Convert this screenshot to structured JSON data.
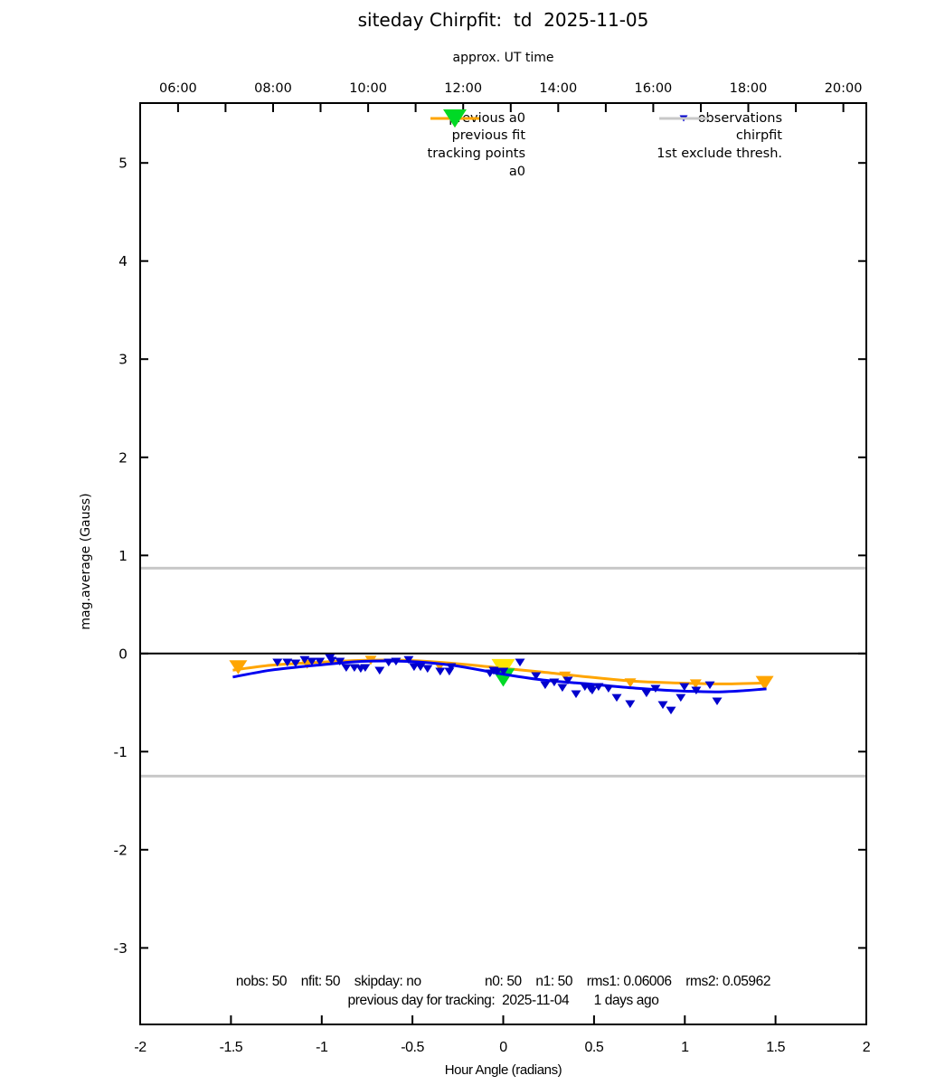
{
  "title": "siteday Chirpfit:  td  2025-11-05",
  "axes": {
    "top": {
      "label": "approx. UT time",
      "tick_labels": [
        "06:00",
        "08:00",
        "10:00",
        "12:00",
        "14:00",
        "16:00",
        "18:00",
        "20:00"
      ],
      "tick_hours": [
        6,
        8,
        10,
        12,
        14,
        16,
        18,
        20
      ]
    },
    "bottom": {
      "label": "Hour Angle (radians)",
      "tick_labels": [
        "-2",
        "-1.5",
        "-1",
        "-0.5",
        "0",
        "0.5",
        "1",
        "1.5",
        "2"
      ],
      "tick_values": [
        -2,
        -1.5,
        -1,
        -0.5,
        0,
        0.5,
        1,
        1.5,
        2
      ]
    },
    "left": {
      "label": "mag.average (Gauss)",
      "tick_labels": [
        "5",
        "4",
        "3",
        "2",
        "1",
        "0",
        "-1",
        "-2",
        "-3"
      ],
      "tick_values": [
        5,
        4,
        3,
        2,
        1,
        0,
        -1,
        -2,
        -3
      ]
    }
  },
  "colors": {
    "previous_a0": "#ffe600",
    "previous_fit": "#ffa500",
    "tracking": "#ffa500",
    "a0": "#00d926",
    "observations": "#0000cd",
    "chirpfit": "#0000f0",
    "threshold": "#c8c8c8",
    "zero_line": "#000000",
    "frame": "#000000"
  },
  "legend": {
    "left": [
      {
        "label": "previous a0",
        "swatch": "triangle-large",
        "color_key": "previous_a0"
      },
      {
        "label": "previous fit",
        "swatch": "line",
        "color_key": "previous_fit"
      },
      {
        "label": "tracking points",
        "swatch": "triangle-small",
        "color_key": "tracking"
      },
      {
        "label": "a0",
        "swatch": "triangle-large",
        "color_key": "a0"
      }
    ],
    "right": [
      {
        "label": "observations",
        "swatch": "triangle-tiny",
        "color_key": "observations"
      },
      {
        "label": "chirpfit",
        "swatch": "line",
        "color_key": "chirpfit"
      },
      {
        "label": "1st exclude thresh.",
        "swatch": "line",
        "color_key": "threshold"
      }
    ]
  },
  "stats": {
    "line1_parts": [
      "nobs: 50",
      "nfit: 50",
      "skipday: no",
      "n0: 50",
      "n1: 50",
      "rms1: 0.06006",
      "rms2: 0.05962"
    ],
    "line2_parts": [
      "previous day for tracking:  2025-11-04",
      "1 days ago"
    ]
  },
  "chart_data": {
    "type": "scatter",
    "title": "siteday Chirpfit:  td  2025-11-05",
    "xlabel": "Hour Angle (radians)",
    "ylabel": "mag.average (Gauss)",
    "x2label": "approx. UT time",
    "xlim": [
      -2,
      2
    ],
    "ylim": [
      -3.78,
      5.61
    ],
    "grid": false,
    "legend_position": "top-inside",
    "series": [
      {
        "name": "1st exclude thresh.",
        "type": "hline",
        "color": "#c8c8c8",
        "width": 3,
        "values": [
          0.87,
          -1.25
        ]
      },
      {
        "name": "zero line",
        "type": "hline",
        "color": "#000000",
        "width": 2,
        "values": [
          0
        ]
      },
      {
        "name": "previous fit",
        "type": "line",
        "color": "#ffa500",
        "width": 3,
        "points": [
          [
            -1.49,
            -0.17
          ],
          [
            -1.28,
            -0.12
          ],
          [
            -1.03,
            -0.09
          ],
          [
            -0.78,
            -0.07
          ],
          [
            -0.53,
            -0.07
          ],
          [
            -0.28,
            -0.1
          ],
          [
            0.0,
            -0.15
          ],
          [
            0.22,
            -0.19
          ],
          [
            0.47,
            -0.24
          ],
          [
            0.71,
            -0.28
          ],
          [
            0.96,
            -0.3
          ],
          [
            1.21,
            -0.31
          ],
          [
            1.44,
            -0.3
          ]
        ]
      },
      {
        "name": "tracking points",
        "type": "markers",
        "marker": "triangle-down",
        "size": 13,
        "end_size": 20,
        "color": "#ffa500",
        "points": [
          [
            -1.46,
            -0.14
          ],
          [
            -1.08,
            -0.11
          ],
          [
            -0.73,
            -0.07
          ],
          [
            -0.35,
            -0.13
          ],
          [
            0.0,
            -0.15
          ],
          [
            0.34,
            -0.23
          ],
          [
            0.7,
            -0.3
          ],
          [
            1.06,
            -0.31
          ],
          [
            1.44,
            -0.3
          ]
        ]
      },
      {
        "name": "previous a0",
        "type": "markers",
        "marker": "triangle-down",
        "size": 26,
        "color": "#ffe600",
        "points": [
          [
            0.0,
            -0.15
          ]
        ]
      },
      {
        "name": "a0",
        "type": "markers",
        "marker": "triangle-down",
        "size": 26,
        "color": "#00d926",
        "points": [
          [
            0.0,
            -0.245
          ]
        ]
      },
      {
        "name": "chirpfit",
        "type": "line",
        "color": "#0000f0",
        "width": 3,
        "points": [
          [
            -1.49,
            -0.24
          ],
          [
            -1.28,
            -0.17
          ],
          [
            -1.03,
            -0.12
          ],
          [
            -0.78,
            -0.08
          ],
          [
            -0.53,
            -0.08
          ],
          [
            -0.28,
            -0.12
          ],
          [
            0.0,
            -0.21
          ],
          [
            0.22,
            -0.27
          ],
          [
            0.47,
            -0.31
          ],
          [
            0.71,
            -0.35
          ],
          [
            0.96,
            -0.38
          ],
          [
            1.21,
            -0.39
          ],
          [
            1.45,
            -0.36
          ]
        ]
      },
      {
        "name": "observations",
        "type": "markers",
        "marker": "triangle-down",
        "size": 11,
        "color": "#0000cd",
        "points": [
          [
            -1.244,
            -0.092
          ],
          [
            -1.189,
            -0.092
          ],
          [
            -1.144,
            -0.101
          ],
          [
            -1.094,
            -0.065
          ],
          [
            -1.054,
            -0.083
          ],
          [
            -1.01,
            -0.083
          ],
          [
            -0.955,
            -0.046
          ],
          [
            -0.945,
            -0.074
          ],
          [
            -0.9,
            -0.083
          ],
          [
            -0.865,
            -0.147
          ],
          [
            -0.82,
            -0.147
          ],
          [
            -0.785,
            -0.157
          ],
          [
            -0.76,
            -0.147
          ],
          [
            -0.681,
            -0.175
          ],
          [
            -0.631,
            -0.092
          ],
          [
            -0.591,
            -0.083
          ],
          [
            -0.521,
            -0.065
          ],
          [
            -0.491,
            -0.138
          ],
          [
            -0.456,
            -0.138
          ],
          [
            -0.417,
            -0.157
          ],
          [
            -0.347,
            -0.184
          ],
          [
            -0.297,
            -0.184
          ],
          [
            -0.287,
            -0.138
          ],
          [
            -0.073,
            -0.203
          ],
          [
            -0.053,
            -0.175
          ],
          [
            -0.033,
            -0.184
          ],
          [
            0.002,
            -0.184
          ],
          [
            0.092,
            -0.092
          ],
          [
            0.181,
            -0.23
          ],
          [
            0.231,
            -0.323
          ],
          [
            0.281,
            -0.295
          ],
          [
            0.326,
            -0.35
          ],
          [
            0.356,
            -0.276
          ],
          [
            0.401,
            -0.415
          ],
          [
            0.45,
            -0.341
          ],
          [
            0.48,
            -0.359
          ],
          [
            0.49,
            -0.378
          ],
          [
            0.525,
            -0.341
          ],
          [
            0.58,
            -0.359
          ],
          [
            0.625,
            -0.452
          ],
          [
            0.699,
            -0.516
          ],
          [
            0.789,
            -0.406
          ],
          [
            0.839,
            -0.359
          ],
          [
            0.879,
            -0.525
          ],
          [
            0.924,
            -0.581
          ],
          [
            0.978,
            -0.452
          ],
          [
            0.998,
            -0.341
          ],
          [
            1.063,
            -0.378
          ],
          [
            1.138,
            -0.323
          ],
          [
            1.178,
            -0.488
          ]
        ]
      }
    ]
  }
}
